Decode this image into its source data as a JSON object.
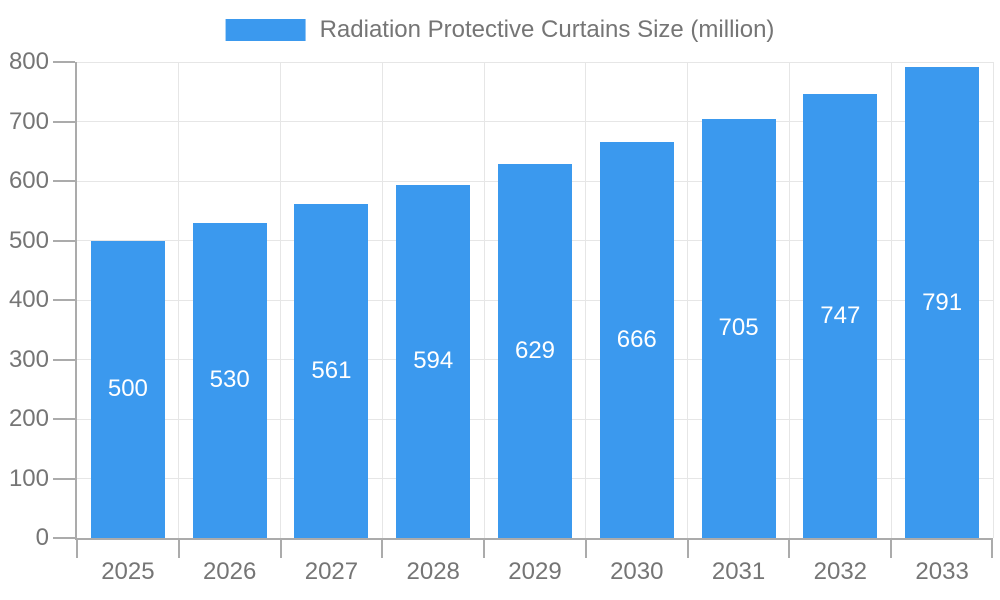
{
  "legend": {
    "label": "Radiation Protective Curtains Size (million)"
  },
  "colors": {
    "bar": "#3b99ee",
    "axis": "#ababab",
    "grid": "#e6e6e6",
    "tick_text": "#757575",
    "legend_text": "#757575",
    "value_label_text": "#ffffff",
    "background": "#ffffff"
  },
  "chart_data": {
    "type": "bar",
    "title": "Radiation Protective Curtains Size (million)",
    "categories": [
      "2025",
      "2026",
      "2027",
      "2028",
      "2029",
      "2030",
      "2031",
      "2032",
      "2033"
    ],
    "values": [
      500,
      530,
      561,
      594,
      629,
      666,
      705,
      747,
      791
    ],
    "xlabel": "",
    "ylabel": "",
    "ylim": [
      0,
      800
    ],
    "ytick_interval": 100,
    "ytick_labels": [
      "0",
      "100",
      "200",
      "300",
      "400",
      "500",
      "600",
      "700",
      "800"
    ],
    "grid": true,
    "value_labels_inside_bars": true,
    "legend_position": "top-center"
  }
}
